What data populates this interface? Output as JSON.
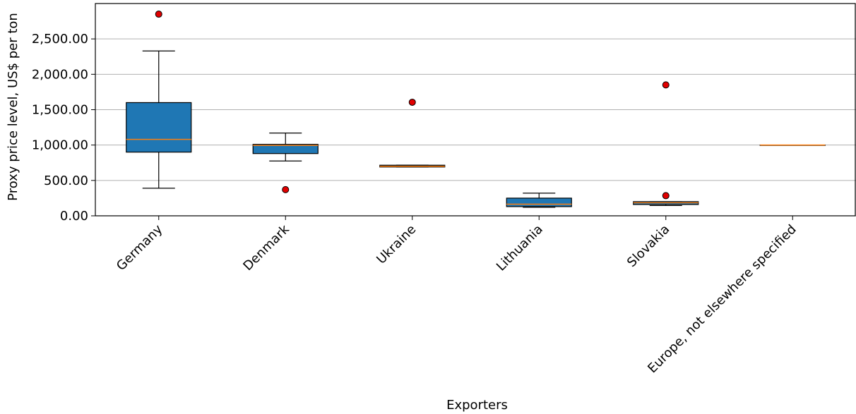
{
  "chart_data": {
    "type": "box",
    "xlabel": "Exporters",
    "ylabel": "Proxy price level, US$ per ton",
    "ylim": [
      0,
      3000
    ],
    "yticks": [
      0,
      500,
      1000,
      1500,
      2000,
      2500
    ],
    "ytick_labels": [
      "0.00",
      "500.00",
      "1,000.00",
      "1,500.00",
      "2,000.00",
      "2,500.00"
    ],
    "grid": "horizontal",
    "colors": {
      "box": "#1f77b4",
      "median": "#ff7f0e",
      "outlier": "#e00000",
      "grid": "#b0b0b0"
    },
    "categories": [
      "Germany",
      "Denmark",
      "Ukraine",
      "Lithuania",
      "Slovakia",
      "Europe, not elsewhere specified"
    ],
    "boxes": [
      {
        "whisker_low": 390,
        "q1": 900,
        "median": 1080,
        "q3": 1600,
        "whisker_high": 2330,
        "outliers": [
          2850
        ]
      },
      {
        "whisker_low": 775,
        "q1": 880,
        "median": 995,
        "q3": 1010,
        "whisker_high": 1170,
        "outliers": [
          370
        ]
      },
      {
        "whisker_low": 690,
        "q1": 690,
        "median": 700,
        "q3": 715,
        "whisker_high": 715,
        "outliers": [
          1605
        ]
      },
      {
        "whisker_low": 120,
        "q1": 130,
        "median": 165,
        "q3": 250,
        "whisker_high": 320,
        "outliers": []
      },
      {
        "whisker_low": 145,
        "q1": 160,
        "median": 185,
        "q3": 200,
        "whisker_high": 200,
        "outliers": [
          1850,
          285
        ]
      },
      {
        "whisker_low": 1000,
        "q1": 1000,
        "median": 1000,
        "q3": 1000,
        "whisker_high": 1000,
        "outliers": []
      }
    ]
  }
}
